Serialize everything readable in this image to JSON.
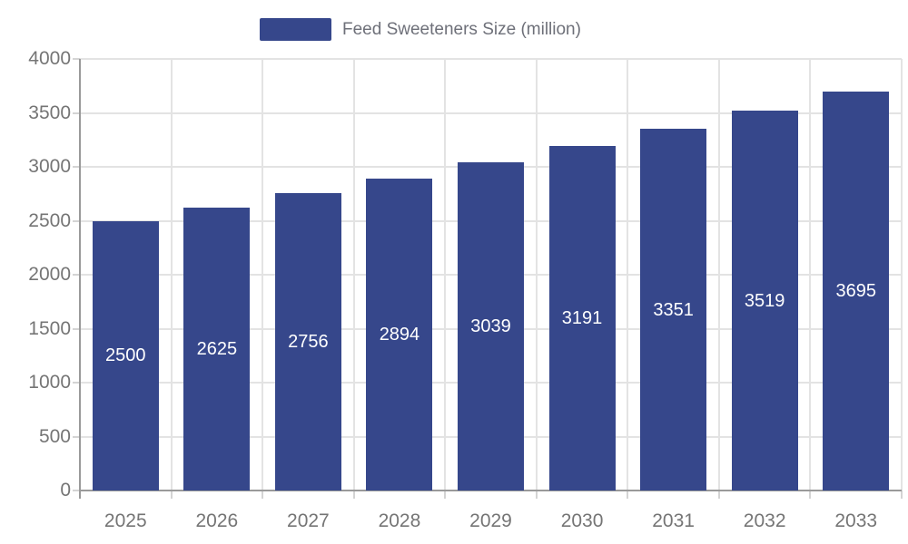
{
  "legend": {
    "label": "Feed Sweeteners Size (million)"
  },
  "chart_data": {
    "type": "bar",
    "title": "Feed Sweeteners Size (million)",
    "categories": [
      "2025",
      "2026",
      "2027",
      "2028",
      "2029",
      "2030",
      "2031",
      "2032",
      "2033"
    ],
    "series": [
      {
        "name": "Feed Sweeteners Size (million)",
        "values": [
          2500,
          2625,
          2756,
          2894,
          3039,
          3191,
          3351,
          3519,
          3695
        ]
      }
    ],
    "bar_value_labels": [
      "2500",
      "2625",
      "2756",
      "2894",
      "3039",
      "3191",
      "3351",
      "3519",
      "3695"
    ],
    "xlabel": "",
    "ylabel": "",
    "ylim": [
      0,
      4000
    ],
    "yticks": [
      0,
      500,
      1000,
      1500,
      2000,
      2500,
      3000,
      3500,
      4000
    ],
    "grid": true,
    "legend_position": "top",
    "colors": {
      "bar": "#36478B",
      "bar_value_text": "#ffffff",
      "axis_text": "#757575",
      "legend_text": "#6E7079",
      "gridline": "#E3E3E3",
      "axis_line": "#9A9A9A",
      "tick_mark": "#D4D4D4"
    }
  }
}
